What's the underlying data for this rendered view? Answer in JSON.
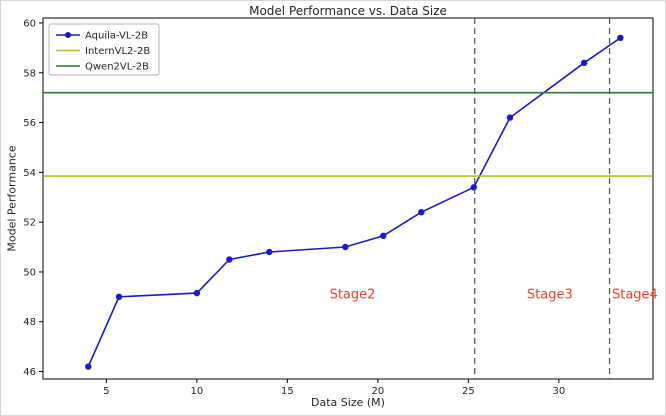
{
  "chart_data": {
    "type": "line",
    "title": "Model Performance vs. Data Size",
    "xlabel": "Data Size (M)",
    "ylabel": "Model Performance",
    "xlim": [
      1.5,
      35.2
    ],
    "ylim": [
      45.7,
      60.2
    ],
    "xticks": [
      5,
      10,
      15,
      20,
      25,
      30
    ],
    "yticks": [
      46,
      48,
      50,
      52,
      54,
      56,
      58,
      60
    ],
    "grid": false,
    "legend_position": "upper-left",
    "series": [
      {
        "name": "Aquila-VL-2B",
        "kind": "line+marker",
        "color": "#1a1acc",
        "marker": "circle",
        "x": [
          4.0,
          5.7,
          10.0,
          11.8,
          14.0,
          18.2,
          20.3,
          22.4,
          25.3,
          27.3,
          31.4,
          33.4
        ],
        "y": [
          46.2,
          49.0,
          49.15,
          50.5,
          50.8,
          51.0,
          51.45,
          52.4,
          53.4,
          56.2,
          58.4,
          59.4
        ]
      },
      {
        "name": "InternVL2-2B",
        "kind": "hline",
        "color": "#b5bd22",
        "y": 53.85
      },
      {
        "name": "Qwen2VL-2B",
        "kind": "hline",
        "color": "#2e7d32",
        "y": 57.2
      }
    ],
    "vlines": [
      {
        "x": 25.35,
        "color": "#4d4d4d",
        "style": "dashed"
      },
      {
        "x": 32.8,
        "color": "#4d4d4d",
        "style": "dashed"
      }
    ],
    "annotations": [
      {
        "text": "Stage2",
        "x": 18.6,
        "y": 49.1,
        "color": "#e8432e"
      },
      {
        "text": "Stage3",
        "x": 29.5,
        "y": 49.1,
        "color": "#e8432e"
      },
      {
        "text": "Stage4",
        "x": 34.2,
        "y": 49.1,
        "color": "#e8432e"
      }
    ]
  }
}
